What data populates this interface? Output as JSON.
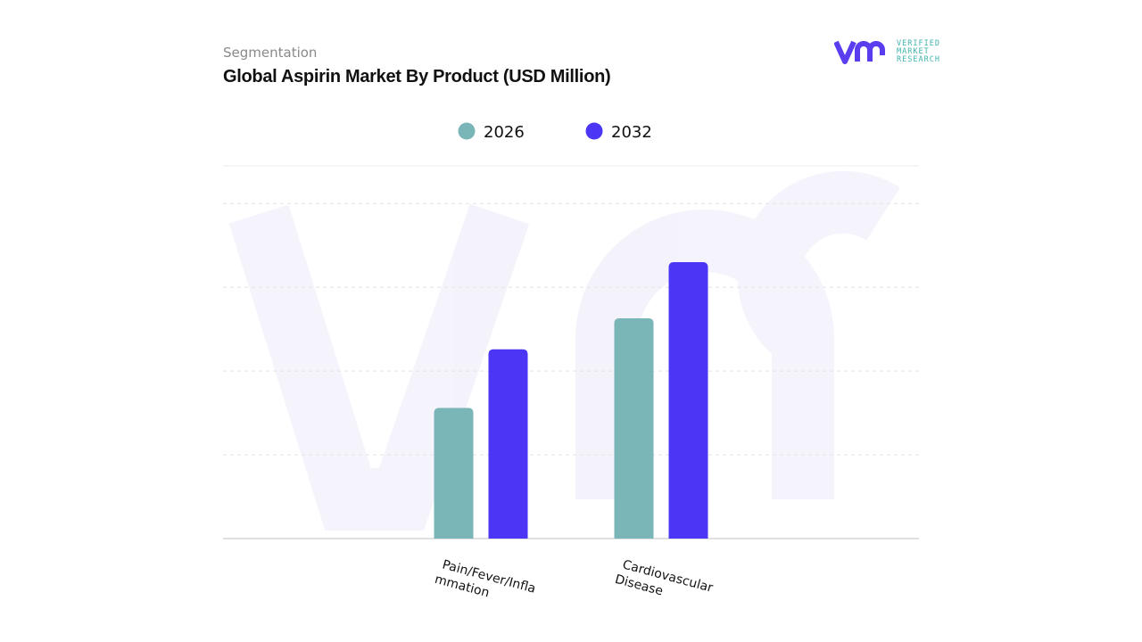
{
  "header": {
    "subtitle": "Segmentation",
    "title": "Global Aspirin Market By Product (USD Million)",
    "logo_text": [
      "VERIFIED",
      "MARKET",
      "RESEARCH"
    ]
  },
  "chart_data": {
    "type": "bar",
    "title": "Global Aspirin Market By Product (USD Million)",
    "categories": [
      "Pain/Fever/Infla mmation",
      "Cardiovascular Disease"
    ],
    "category_lines": [
      [
        "Pain/Fever/Infla",
        "mmation"
      ],
      [
        "Cardiovascular",
        "Disease"
      ]
    ],
    "series": [
      {
        "name": "2026",
        "values": [
          1.56,
          2.63
        ],
        "color": "#7ab5b8"
      },
      {
        "name": "2032",
        "values": [
          2.26,
          3.3
        ],
        "color": "#4b36f5"
      }
    ],
    "ylim": [
      0,
      4.45
    ],
    "grid": true,
    "y_tick_labels_shown": false,
    "legend_position": "top-center",
    "xlabel": "",
    "ylabel": ""
  }
}
